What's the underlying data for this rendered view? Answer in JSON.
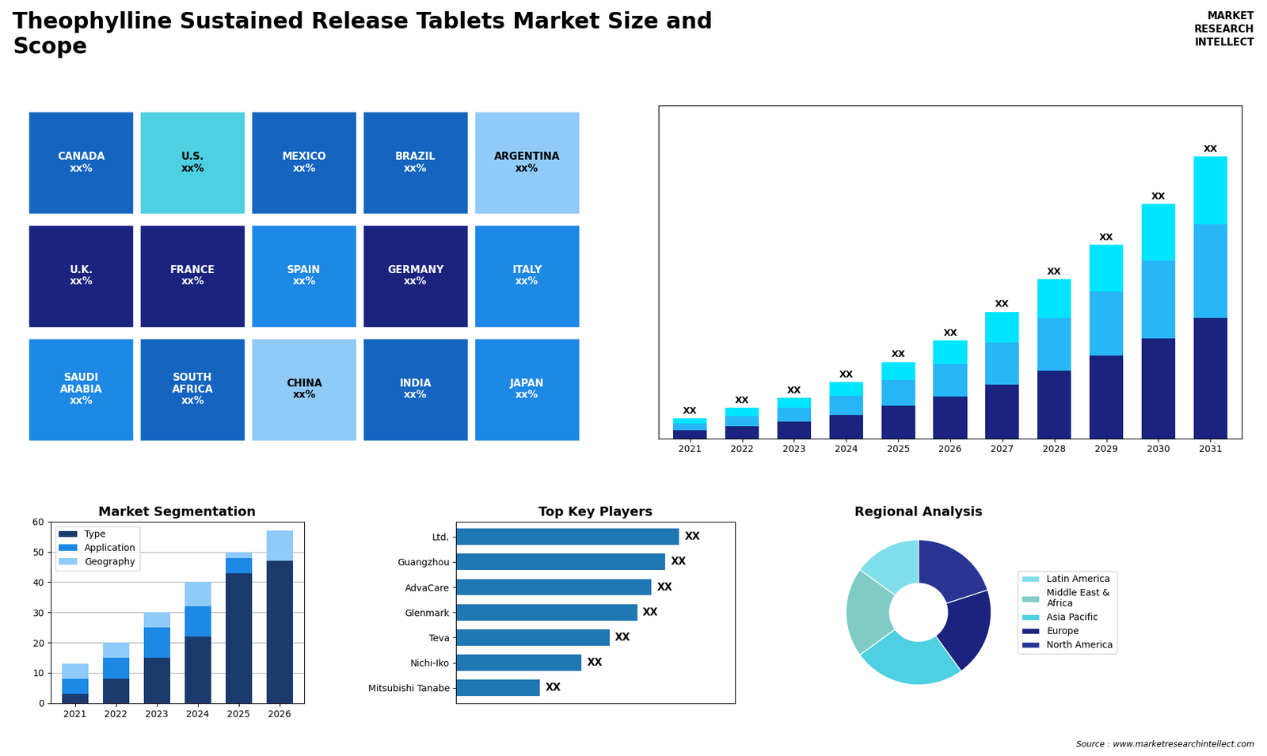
{
  "title": "Theophylline Sustained Release Tablets Market Size and\nScope",
  "annotations": [
    "MARKET\nRESEARCH\nINTELLECT",
    "Source : www.marketresearchintellect.com"
  ],
  "chart_data": [
    {
      "type": "map",
      "categories": [
        "CANADA\nxx%",
        "U.S.\nxx%",
        "MEXICO\nxx%",
        "BRAZIL\nxx%",
        "ARGENTINA\nxx%",
        "U.K.\nxx%",
        "FRANCE\nxx%",
        "SPAIN\nxx%",
        "GERMANY\nxx%",
        "ITALY\nxx%",
        "SAUDI\nARABIA\nxx%",
        "SOUTH\nAFRICA\nxx%",
        "CHINA\nxx%",
        "INDIA\nxx%",
        "JAPAN\nxx%"
      ],
      "colors": [
        "#1565c0",
        "#4dd0e1",
        "#1565c0",
        "#1565c0",
        "#90caf9",
        "#1a237e",
        "#1a237e",
        "#1e88e5",
        "#1a237e",
        "#1e88e5",
        "#1e88e5",
        "#1565c0",
        "#90caf9",
        "#1565c0",
        "#1e88e5"
      ]
    },
    {
      "type": "bar",
      "stacked": true,
      "categories": [
        "2021",
        "2022",
        "2023",
        "2024",
        "2025",
        "2026",
        "2027",
        "2028",
        "2029",
        "2030",
        "2031"
      ],
      "series": [
        {
          "color": "#1a237e",
          "values": [
            1.2,
            1.8,
            2.5,
            3.5,
            4.8,
            6.2,
            8.0,
            10.0,
            12.2,
            14.8,
            17.8
          ]
        },
        {
          "color": "#29b6f6",
          "values": [
            1.0,
            1.5,
            2.0,
            2.8,
            3.8,
            4.8,
            6.2,
            7.8,
            9.5,
            11.5,
            13.8
          ]
        },
        {
          "color": "#00e5ff",
          "values": [
            0.8,
            1.2,
            1.5,
            2.0,
            2.7,
            3.5,
            4.5,
            5.7,
            6.9,
            8.3,
            10.0
          ]
        }
      ],
      "ylim": [
        0,
        49.088
      ],
      "yticks": [],
      "tick_labels": "x",
      "value_labels": [
        "XX",
        "XX",
        "XX",
        "XX",
        "XX",
        "XX",
        "XX",
        "XX",
        "XX",
        "XX",
        "XX"
      ]
    },
    {
      "type": "bar",
      "title": "Market Segmentation",
      "stacked": true,
      "categories": [
        "2021",
        "2022",
        "2023",
        "2024",
        "2025",
        "2026"
      ],
      "series": [
        {
          "name": "Type",
          "color": "#1a3a6b",
          "values": [
            3,
            8,
            15,
            22,
            43,
            47
          ]
        },
        {
          "name": "Application",
          "color": "#1e88e5",
          "values": [
            5,
            7,
            10,
            10,
            5,
            0
          ]
        },
        {
          "name": "Geography",
          "color": "#90caf9",
          "values": [
            5,
            5,
            5,
            8,
            2,
            10
          ]
        }
      ],
      "ylim": [
        0,
        60
      ],
      "yticks": [
        0,
        10,
        20,
        30,
        40,
        50,
        60
      ],
      "grid": true,
      "legend": "upper left"
    },
    {
      "type": "bar",
      "title": "Top Key Players",
      "orientation": "horizontal",
      "categories": [
        "Ltd.",
        "Guangzhou",
        "AdvaCare",
        "Glenmark",
        "Teva",
        "Nichi-Iko",
        "Mitsubishi Tanabe"
      ],
      "values": [
        8.0,
        7.5,
        7.0,
        6.5,
        5.5,
        4.5,
        3.0
      ],
      "xlim": [
        0,
        10
      ],
      "xticks": [],
      "tick_labels": "y",
      "value_labels": [
        "XX",
        "XX",
        "XX",
        "XX",
        "XX",
        "XX",
        "XX"
      ]
    },
    {
      "type": "pie",
      "title": "Regional Analysis",
      "categories": [
        "Latin America",
        "Middle East &\nAfrica",
        "Asia Pacific",
        "Europe",
        "North America"
      ],
      "values": [
        15,
        20,
        25,
        20,
        20
      ],
      "colors": [
        "#80deea",
        "#80cbc4",
        "#4dd0e1",
        "#1a237e",
        "#283593"
      ],
      "legend": "center left"
    }
  ]
}
